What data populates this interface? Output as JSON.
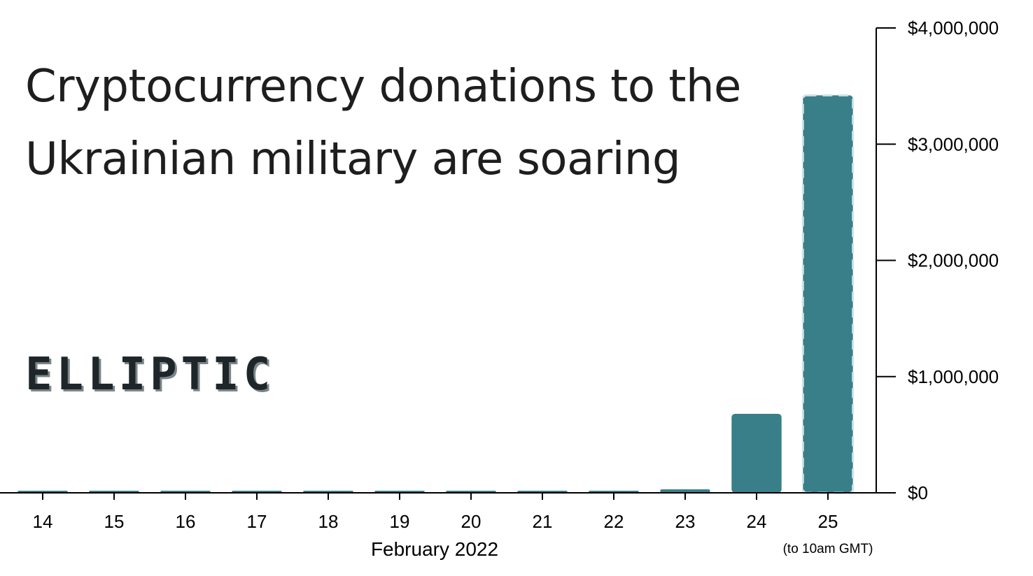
{
  "chart_data": {
    "type": "bar",
    "title": "Cryptocurrency donations to the Ukrainian military are soaring",
    "xlabel": "February 2022",
    "ylabel": "",
    "categories": [
      "14",
      "15",
      "16",
      "17",
      "18",
      "19",
      "20",
      "21",
      "22",
      "23",
      "24",
      "25"
    ],
    "category_note": "(to 10am GMT)",
    "values": [
      3000,
      3000,
      3000,
      3000,
      3000,
      3000,
      3000,
      3000,
      3000,
      30000,
      680000,
      3420000
    ],
    "ylim": [
      0,
      4000000
    ],
    "yticks": [
      0,
      1000000,
      2000000,
      3000000,
      4000000
    ],
    "ytick_labels": [
      "$0",
      "$1,000,000",
      "$2,000,000",
      "$3,000,000",
      "$4,000,000"
    ],
    "y_axis_position": "right",
    "grid": false,
    "legend": "none",
    "bar_color": "#387f8a",
    "dashed_outline_last_bar": true
  },
  "brand": {
    "logo_text": "ELLIPTIC",
    "text_color": "#1e1e1e"
  }
}
